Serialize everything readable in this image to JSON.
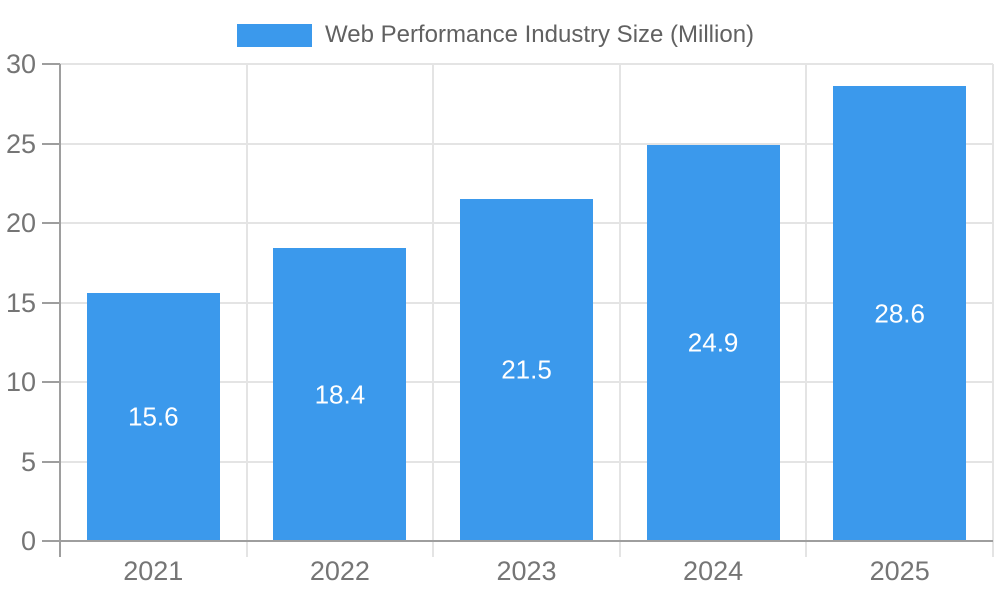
{
  "chart_data": {
    "type": "bar",
    "title": "Web Performance Industry Size (Million)",
    "categories": [
      "2021",
      "2022",
      "2023",
      "2024",
      "2025"
    ],
    "values": [
      15.6,
      18.4,
      21.5,
      24.9,
      28.6
    ],
    "value_labels": [
      "15.6",
      "18.4",
      "21.5",
      "24.9",
      "28.6"
    ],
    "series": [
      {
        "name": "Web Performance Industry Size (Million)",
        "values": [
          15.6,
          18.4,
          21.5,
          24.9,
          28.6
        ]
      }
    ],
    "xlabel": "",
    "ylabel": "",
    "ylim": [
      0,
      30
    ],
    "ytick_step": 5,
    "ytick_labels": [
      "0",
      "5",
      "10",
      "15",
      "20",
      "25",
      "30"
    ],
    "grid": true,
    "legend_position": "top-center",
    "colors": {
      "bar": "#3b99ec",
      "axis": "#9e9e9e",
      "gridline": "#e4e4e4",
      "axis_label": "#757575",
      "legend_text": "#616161",
      "value_label": "#ffffff",
      "background": "#ffffff"
    }
  }
}
